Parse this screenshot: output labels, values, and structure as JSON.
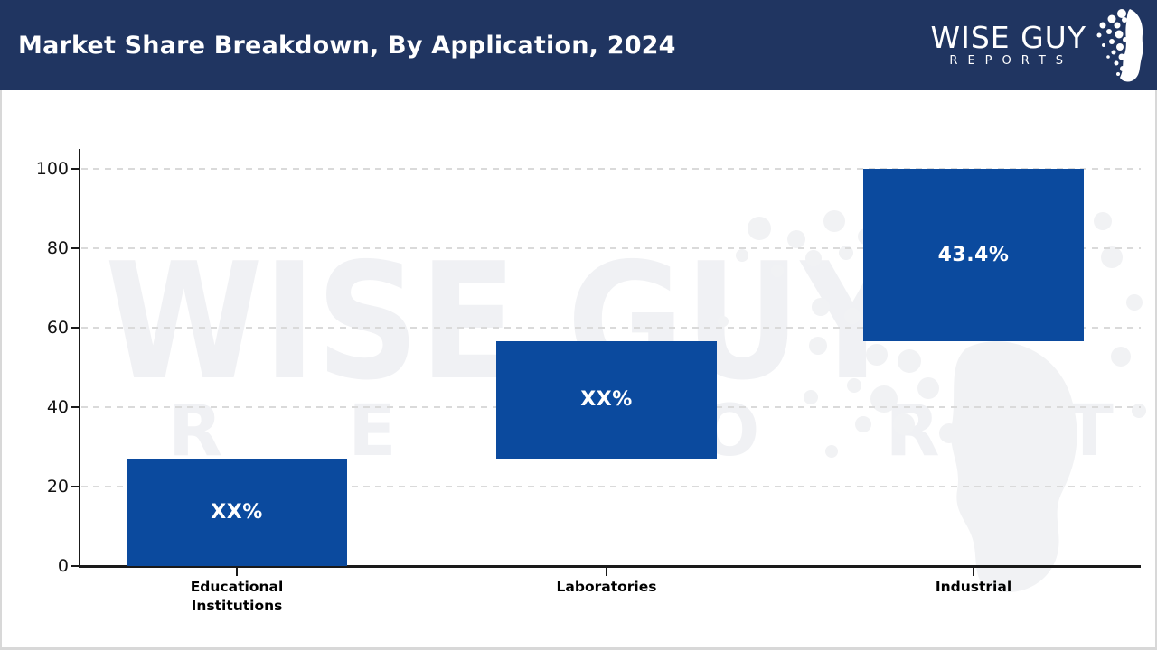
{
  "header": {
    "title": "Market Share Breakdown, By Application, 2024",
    "logo": {
      "line1": "WISE GUY",
      "line2": "REPORTS"
    }
  },
  "watermark": {
    "line1": "WISE GUY",
    "line2": "R E P O R T S"
  },
  "colors": {
    "header_bg": "#203561",
    "bar": "#0b4a9e",
    "grid": "#dadada",
    "axis": "#1a1a1a",
    "bar_label": "#ffffff",
    "watermark": "#f0f1f4"
  },
  "chart_data": {
    "type": "bar",
    "subtype": "floating-segment (waterfall-style market share breakdown)",
    "title": "Market Share Breakdown, By Application, 2024",
    "categories": [
      "Educational Institutions",
      "Laboratories",
      "Industrial"
    ],
    "category_lines": [
      [
        "Educational",
        "Institutions"
      ],
      [
        "Laboratories"
      ],
      [
        "Industrial"
      ]
    ],
    "segments": [
      {
        "category": "Educational Institutions",
        "start": 0,
        "end": 27.0,
        "value": 27.0,
        "label": "XX%"
      },
      {
        "category": "Laboratories",
        "start": 27.0,
        "end": 56.6,
        "value": 29.6,
        "label": "XX%"
      },
      {
        "category": "Industrial",
        "start": 56.6,
        "end": 100.0,
        "value": 43.4,
        "label": "43.4%"
      }
    ],
    "yticks": [
      0,
      20,
      40,
      60,
      80,
      100
    ],
    "ylim": [
      0,
      105
    ],
    "xlabel": "",
    "ylabel": "",
    "grid": "horizontal dashed",
    "legend": "none"
  }
}
